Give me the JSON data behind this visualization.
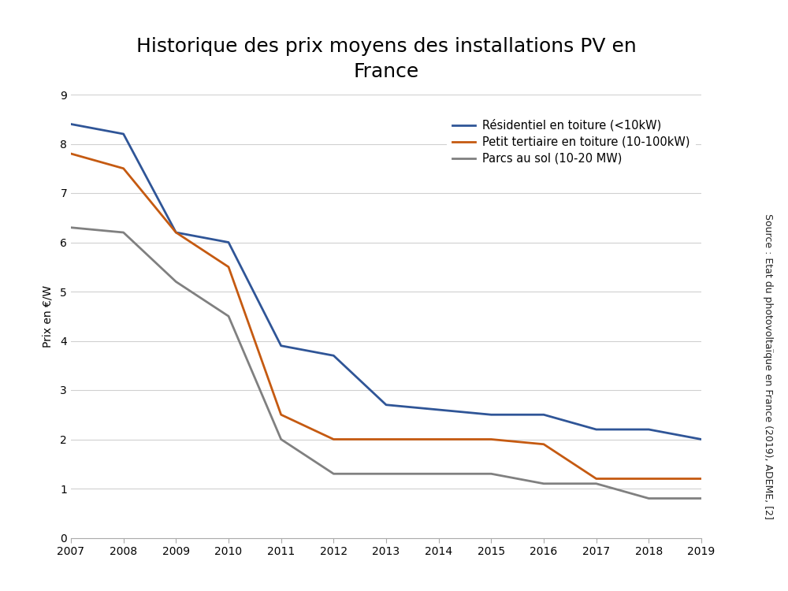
{
  "title": "Historique des prix moyens des installations PV en\nFrance",
  "xlabel": "",
  "ylabel": "Prix en €/W",
  "years": [
    2007,
    2008,
    2009,
    2010,
    2011,
    2012,
    2013,
    2014,
    2015,
    2016,
    2017,
    2018,
    2019
  ],
  "series": [
    {
      "label": "Résidentiel en toiture (<10kW)",
      "color": "#2f5597",
      "values": [
        8.4,
        8.2,
        6.2,
        6.0,
        3.9,
        3.7,
        2.7,
        2.6,
        2.5,
        2.5,
        2.2,
        2.2,
        2.0
      ]
    },
    {
      "label": "Petit tertiaire en toiture (10-100kW)",
      "color": "#c55a11",
      "values": [
        7.8,
        7.5,
        6.2,
        5.5,
        2.5,
        2.0,
        2.0,
        2.0,
        2.0,
        1.9,
        1.2,
        1.2,
        1.2
      ]
    },
    {
      "label": "Parcs au sol (10-20 MW)",
      "color": "#808080",
      "values": [
        6.3,
        6.2,
        5.2,
        4.5,
        2.0,
        1.3,
        1.3,
        1.3,
        1.3,
        1.1,
        1.1,
        0.8,
        0.8
      ]
    }
  ],
  "ylim": [
    0,
    9
  ],
  "yticks": [
    0,
    1,
    2,
    3,
    4,
    5,
    6,
    7,
    8,
    9
  ],
  "source_text": "Source : Etat du photovoltaïque en France (2019), ADEME, [2]",
  "background_color": "#ffffff",
  "grid_color": "#d0d0d0",
  "title_fontsize": 18,
  "legend_fontsize": 10.5,
  "axis_label_fontsize": 10,
  "tick_fontsize": 10
}
